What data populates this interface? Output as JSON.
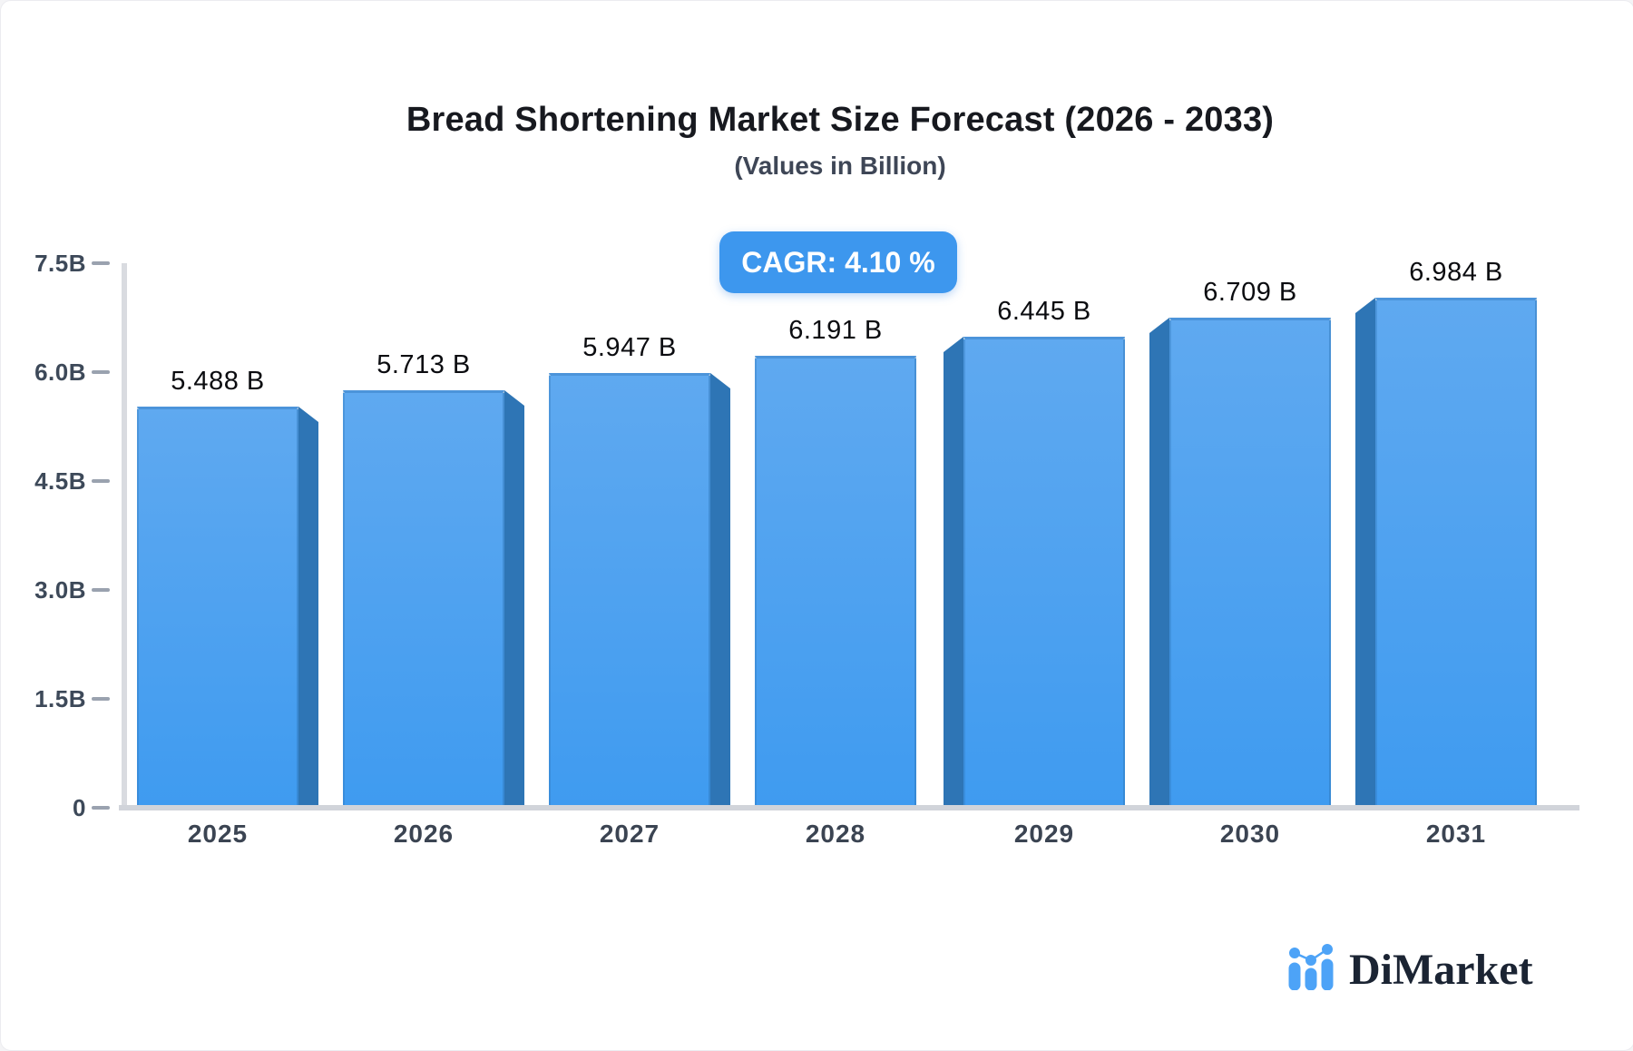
{
  "header": {
    "title": "Bread Shortening Market Size Forecast (2026 - 2033)",
    "subtitle": "(Values in Billion)"
  },
  "badge": {
    "label": "CAGR: 4.10 %",
    "background_color": "#3d97ee",
    "text_color": "#ffffff"
  },
  "chart_data": {
    "type": "bar",
    "title": "Bread Shortening Market Size Forecast (2026 - 2033)",
    "subtitle": "(Values in Billion)",
    "annotation": "CAGR: 4.10 %",
    "categories": [
      "2025",
      "2026",
      "2027",
      "2028",
      "2029",
      "2030",
      "2031"
    ],
    "values": [
      5.488,
      5.713,
      5.947,
      6.191,
      6.445,
      6.709,
      6.984
    ],
    "value_labels": [
      "5.488 B",
      "5.713 B",
      "5.947 B",
      "6.191 B",
      "6.445 B",
      "6.709 B",
      "6.984 B"
    ],
    "xlabel": "",
    "ylabel": "",
    "ylim": [
      0,
      7.5
    ],
    "yticks": {
      "values": [
        0,
        1.5,
        3.0,
        4.5,
        6.0,
        7.5
      ],
      "labels": [
        "0",
        "1.5B",
        "3.0B",
        "4.5B",
        "6.0B",
        "7.5B"
      ]
    },
    "grid": false,
    "legend_position": "none",
    "style": "3d-extruded-bars, extrusion faces toward center bar",
    "colors": {
      "bar_face_top": "#5fa9f0",
      "bar_face_bottom": "#3f9bf0",
      "bar_side": "#2e75b5",
      "bar_edge": "#4c94da",
      "axis_line": "#d9dbe0",
      "baseline": "#d1d4da",
      "tick_mark": "#9aa2af",
      "tick_text": "#3d4959",
      "value_text": "#0b0c10"
    }
  },
  "logo": {
    "name": "DiMarket",
    "icon": "bar-chart-with-trend-dots-icon",
    "icon_color": "#4da3f7",
    "text_color": "#1b2433"
  }
}
